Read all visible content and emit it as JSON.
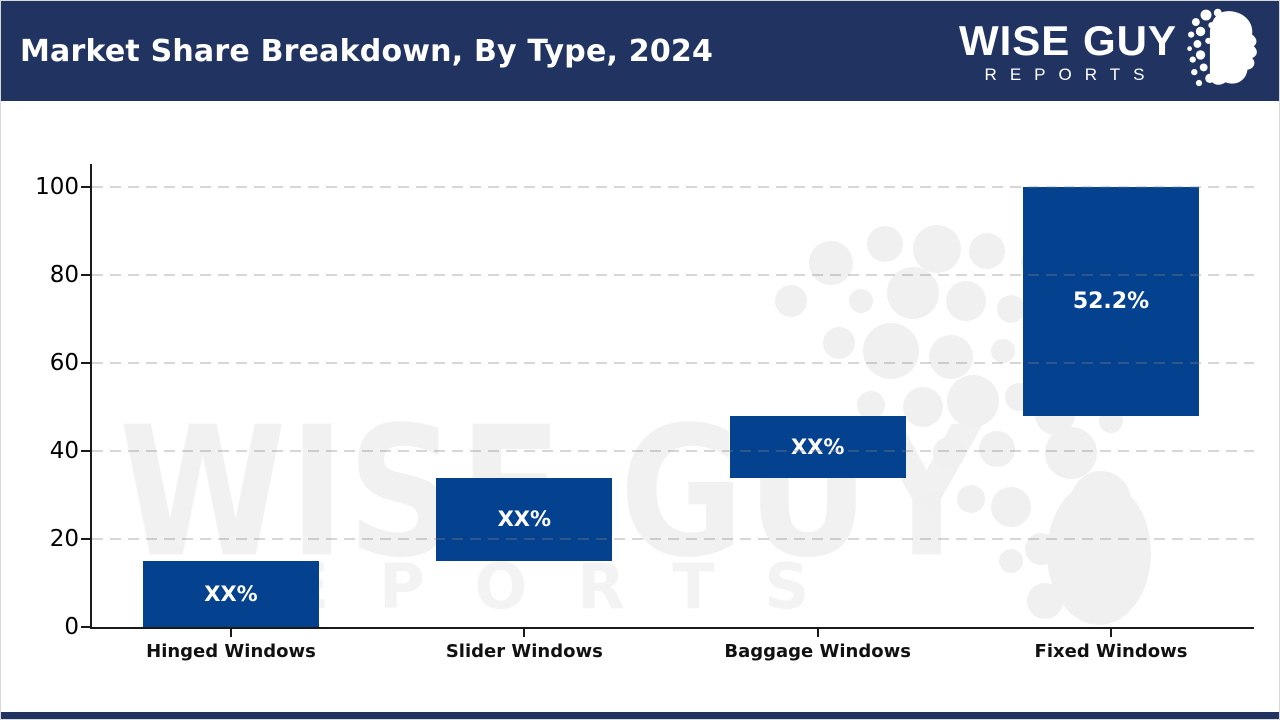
{
  "header": {
    "title": "Market Share Breakdown, By Type, 2024",
    "logo_line1": "WISE GUY",
    "logo_line2": "REPORTS"
  },
  "watermark": {
    "line1": "WISE GUY",
    "line2": "REPORTS"
  },
  "colors": {
    "header_navy": "#213461",
    "footer_navy": "#213461",
    "bar_blue": "#04418f",
    "axis_black": "#1a1a1a",
    "grid_gray": "#e2e2e2",
    "watermark_gray": "#f0f0f0",
    "title_white": "#ffffff"
  },
  "chart_data": {
    "type": "bar",
    "subtype": "floating-waterfall",
    "title": "Market Share Breakdown, By Type, 2024",
    "xlabel": "",
    "ylabel": "",
    "ylim": [
      0,
      100
    ],
    "yticks": [
      0,
      20,
      40,
      60,
      80,
      100
    ],
    "grid": "horizontal-dashed",
    "legend": "none",
    "categories": [
      "Hinged Windows",
      "Slider Windows",
      "Baggage Windows",
      "Fixed Windows"
    ],
    "bars": [
      {
        "category": "Hinged Windows",
        "start": 0,
        "end": 15,
        "value_label": "XX%"
      },
      {
        "category": "Slider Windows",
        "start": 15,
        "end": 33.9,
        "value_label": "XX%"
      },
      {
        "category": "Baggage Windows",
        "start": 33.9,
        "end": 47.8,
        "value_label": "XX%"
      },
      {
        "category": "Fixed Windows",
        "start": 47.8,
        "end": 100,
        "value_label": "52.2%"
      }
    ],
    "bar_color": "#04418f",
    "bar_label_color": "#ffffff"
  }
}
